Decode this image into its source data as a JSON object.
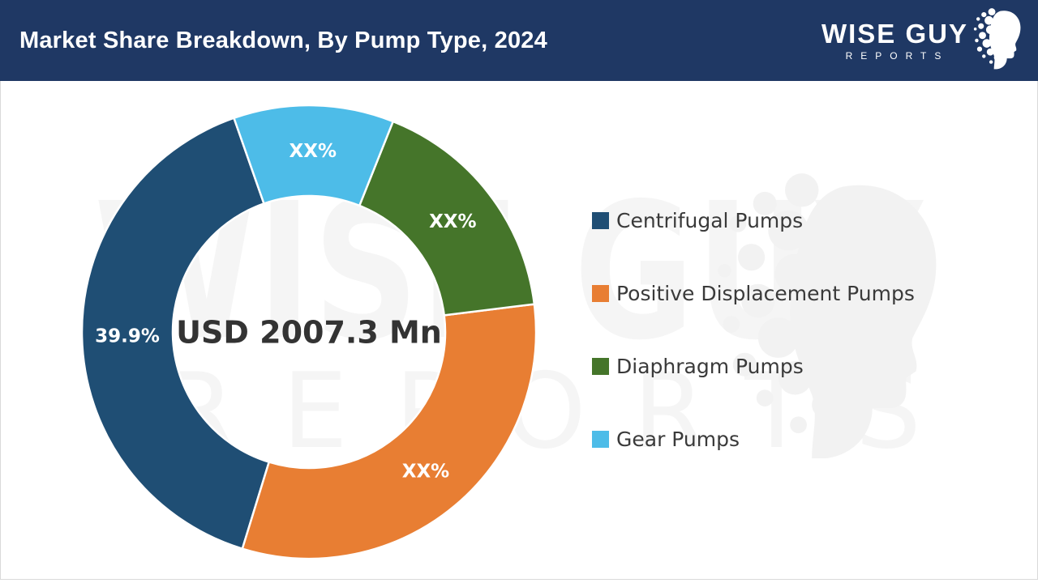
{
  "header": {
    "title": "Market Share Breakdown, By Pump Type, 2024",
    "logo": {
      "line1": "WISE GUY",
      "line2": "REPORTS"
    }
  },
  "watermark": {
    "line1": "WISE GUY",
    "line2": "REPORTS"
  },
  "chart_data": {
    "type": "pie",
    "subtype": "donut",
    "title": "Market Share Breakdown, By Pump Type, 2024",
    "center_label": "USD 2007.3 Mn",
    "legend_position": "right",
    "start_angle_deg": 109.3,
    "counterclockwise": true,
    "hole_radius_ratio": 0.6,
    "segments": [
      {
        "name": "Centrifugal Pumps",
        "label": "39.9%",
        "value_pct": 39.9,
        "color": "#1F4E74"
      },
      {
        "name": "Positive Displacement Pumps",
        "label": "XX%",
        "value_pct": 31.7,
        "color": "#E87E33"
      },
      {
        "name": "Diaphragm Pumps",
        "label": "XX%",
        "value_pct": 17.0,
        "color": "#45752A"
      },
      {
        "name": "Gear Pumps",
        "label": "XX%",
        "value_pct": 11.4,
        "color": "#4DBCE8"
      }
    ]
  }
}
